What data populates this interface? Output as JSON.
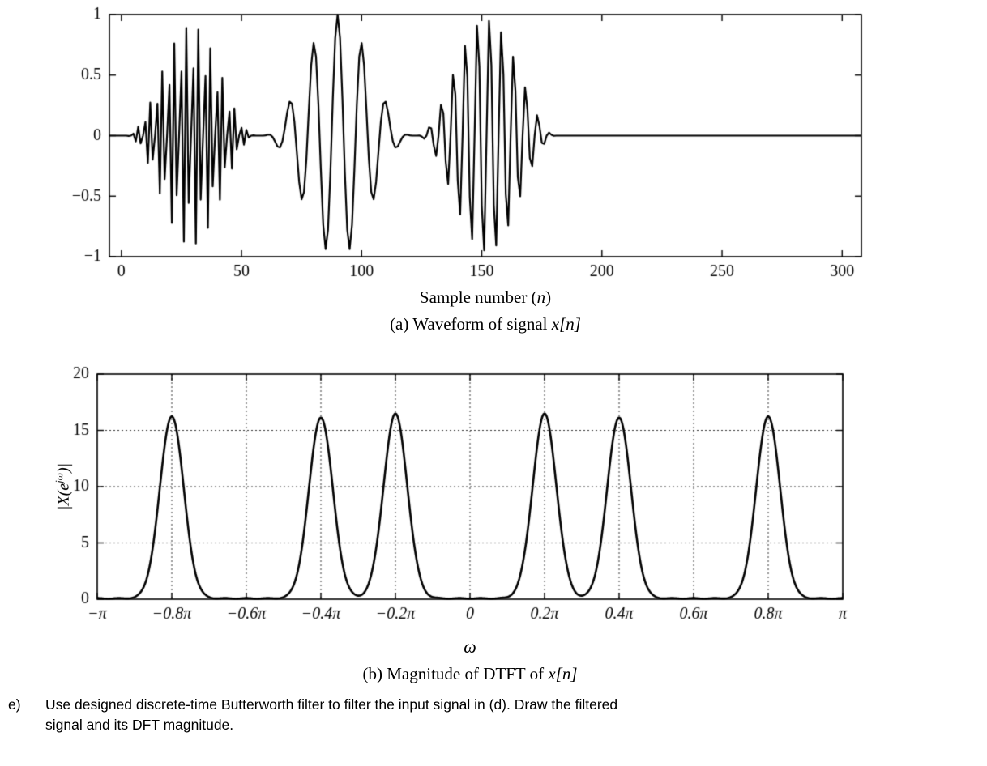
{
  "question": {
    "label": "e)",
    "text": "Use designed discrete-time Butterworth filter to filter the input signal in (d). Draw the filtered signal and its DFT magnitude.",
    "lines": [
      "Use designed discrete-time Butterworth filter to filter the input signal in (d). Draw the filtered",
      "signal and its DFT magnitude."
    ]
  },
  "chart_data": [
    {
      "id": "waveform",
      "type": "line",
      "title": "(a) Waveform of signal x[n]",
      "caption": "(a) Waveform of signal x[n]",
      "caption_parts": {
        "pre": "(a) Waveform of signal ",
        "math": "x[n]"
      },
      "xlabel": "Sample number (n)",
      "xlabel_parts": {
        "pre": "Sample number (",
        "math": "n",
        "post": ")"
      },
      "ylabel": "",
      "xlim": [
        0,
        300
      ],
      "ylim": [
        -1,
        1
      ],
      "xticks": [
        0,
        50,
        100,
        150,
        200,
        250,
        300
      ],
      "xtick_labels": [
        "0",
        "50",
        "100",
        "150",
        "200",
        "250",
        "300"
      ],
      "yticks": [
        -1,
        -0.5,
        0,
        0.5,
        1
      ],
      "ytick_labels": [
        "−1",
        "−0.5",
        "0",
        "0.5",
        "1"
      ],
      "grid": false,
      "signal": {
        "description": "Three Hanning-windowed sinusoidal bursts (normalized frequencies 0.8π, 0.2π, 0.4π rad/sample) followed by zeros up to n = 300",
        "n_range": [
          0,
          300
        ],
        "bursts": [
          {
            "center": 29,
            "half_width": 27,
            "normalized_freq_pi": 0.8,
            "peak_amplitude": 0.95,
            "phase_pi": -0.5
          },
          {
            "center": 90,
            "half_width": 31,
            "normalized_freq_pi": 0.2,
            "peak_amplitude": 1.0,
            "phase_pi": 0
          },
          {
            "center": 152,
            "half_width": 29,
            "normalized_freq_pi": 0.4,
            "peak_amplitude": 1.0,
            "phase_pi": -0.5
          }
        ],
        "zero_after": 181
      }
    },
    {
      "id": "dtft",
      "type": "line",
      "title": "(b) Magnitude of DTFT of x[n]",
      "caption": "(b) Magnitude of DTFT of x[n]",
      "caption_parts": {
        "pre": "(b) Magnitude of DTFT of ",
        "math": "x[n]"
      },
      "xlabel": "ω",
      "ylabel": "|X(e^jω)|",
      "ylabel_parts": {
        "pre": "|X(e",
        "sup": "jω",
        "post": ")|"
      },
      "xlim_pi": [
        -1,
        1
      ],
      "ylim": [
        0,
        20
      ],
      "xticks_pi": [
        -1,
        -0.8,
        -0.6,
        -0.4,
        -0.2,
        0,
        0.2,
        0.4,
        0.6,
        0.8,
        1
      ],
      "xtick_labels": [
        "−π",
        "−0.8π",
        "−0.6π",
        "−0.4π",
        "−0.2π",
        "0",
        "0.2π",
        "0.4π",
        "0.6π",
        "0.8π",
        "π"
      ],
      "yticks": [
        0,
        5,
        10,
        15,
        20
      ],
      "ytick_labels": [
        "0",
        "5",
        "10",
        "15",
        "20"
      ],
      "grid": "dashed",
      "peaks": [
        {
          "omega_pi": -0.8,
          "height": 16.2
        },
        {
          "omega_pi": -0.4,
          "height": 16.1
        },
        {
          "omega_pi": -0.2,
          "height": 16.4
        },
        {
          "omega_pi": 0.2,
          "height": 16.4
        },
        {
          "omega_pi": 0.4,
          "height": 16.1
        },
        {
          "omega_pi": 0.8,
          "height": 16.2
        }
      ],
      "peak_sigma_pi": 0.032,
      "baseline": 0.1
    }
  ]
}
